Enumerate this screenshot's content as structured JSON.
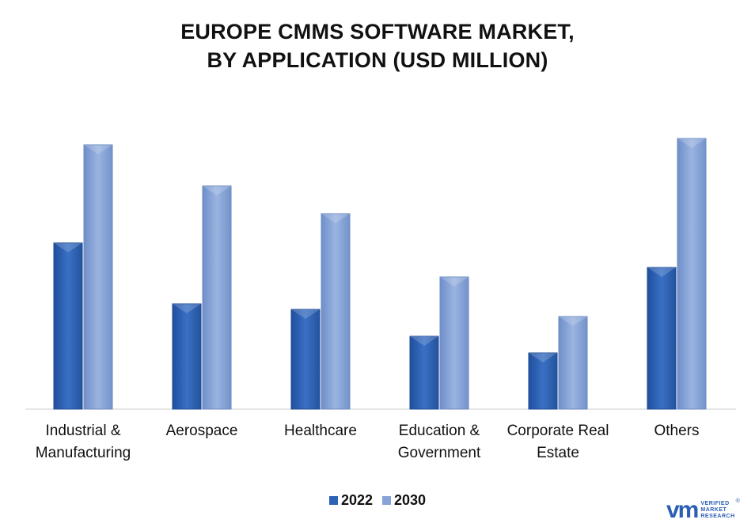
{
  "title_lines": [
    "EUROPE CMMS SOFTWARE MARKET,",
    "BY APPLICATION (USD MILLION)"
  ],
  "chart_data": {
    "type": "bar",
    "title": "EUROPE CMMS SOFTWARE MARKET, BY APPLICATION (USD MILLION)",
    "categories": [
      "Industrial & Manufacturing",
      "Aerospace",
      "Healthcare",
      "Education & Government",
      "Corporate Real Estate",
      "Others"
    ],
    "category_label_lines": [
      [
        "Industrial &",
        "Manufacturing"
      ],
      [
        "Aerospace"
      ],
      [
        "Healthcare"
      ],
      [
        "Education &",
        "Government"
      ],
      [
        "Corporate Real",
        "Estate"
      ],
      [
        "Others"
      ]
    ],
    "series": [
      {
        "name": "2022",
        "values": [
          210,
          133,
          126,
          92,
          71,
          179
        ],
        "color": "#2e62b5"
      },
      {
        "name": "2030",
        "values": [
          334,
          282,
          247,
          167,
          117,
          342
        ],
        "color": "#86a4d7"
      }
    ],
    "ylim": [
      0,
      360
    ],
    "show_y_axis": false,
    "grid": false,
    "legend_position": "bottom-center"
  },
  "logo": {
    "mark": "vm",
    "text_lines": [
      "VERIFIED",
      "MARKET",
      "RESEARCH"
    ],
    "registered": "®"
  }
}
